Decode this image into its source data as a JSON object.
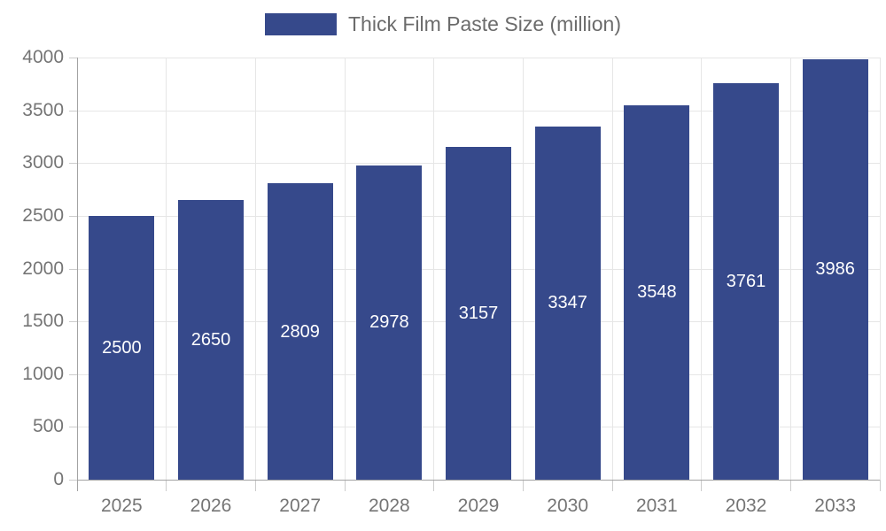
{
  "colors": {
    "bar": "#36498b",
    "grid": "#e6e6e6",
    "axis": "#a3a3a3",
    "tick": "#cccccc",
    "axis_label": "#757575",
    "value_label": "#ffffff",
    "legend_text": "#6b6b6b",
    "background": "#ffffff"
  },
  "chart_data": {
    "type": "bar",
    "title": "",
    "xlabel": "",
    "ylabel": "",
    "categories": [
      "2025",
      "2026",
      "2027",
      "2028",
      "2029",
      "2030",
      "2031",
      "2032",
      "2033"
    ],
    "series": [
      {
        "name": "Thick Film Paste Size (million)",
        "values": [
          2500,
          2650,
          2809,
          2978,
          3157,
          3347,
          3548,
          3761,
          3986
        ]
      }
    ],
    "value_labels_shown": true,
    "value_label_position": "inside-center",
    "ylim": [
      0,
      4000
    ],
    "yticks": [
      0,
      500,
      1000,
      1500,
      2000,
      2500,
      3000,
      3500,
      4000
    ],
    "grid": true,
    "legend_position": "top-center"
  }
}
